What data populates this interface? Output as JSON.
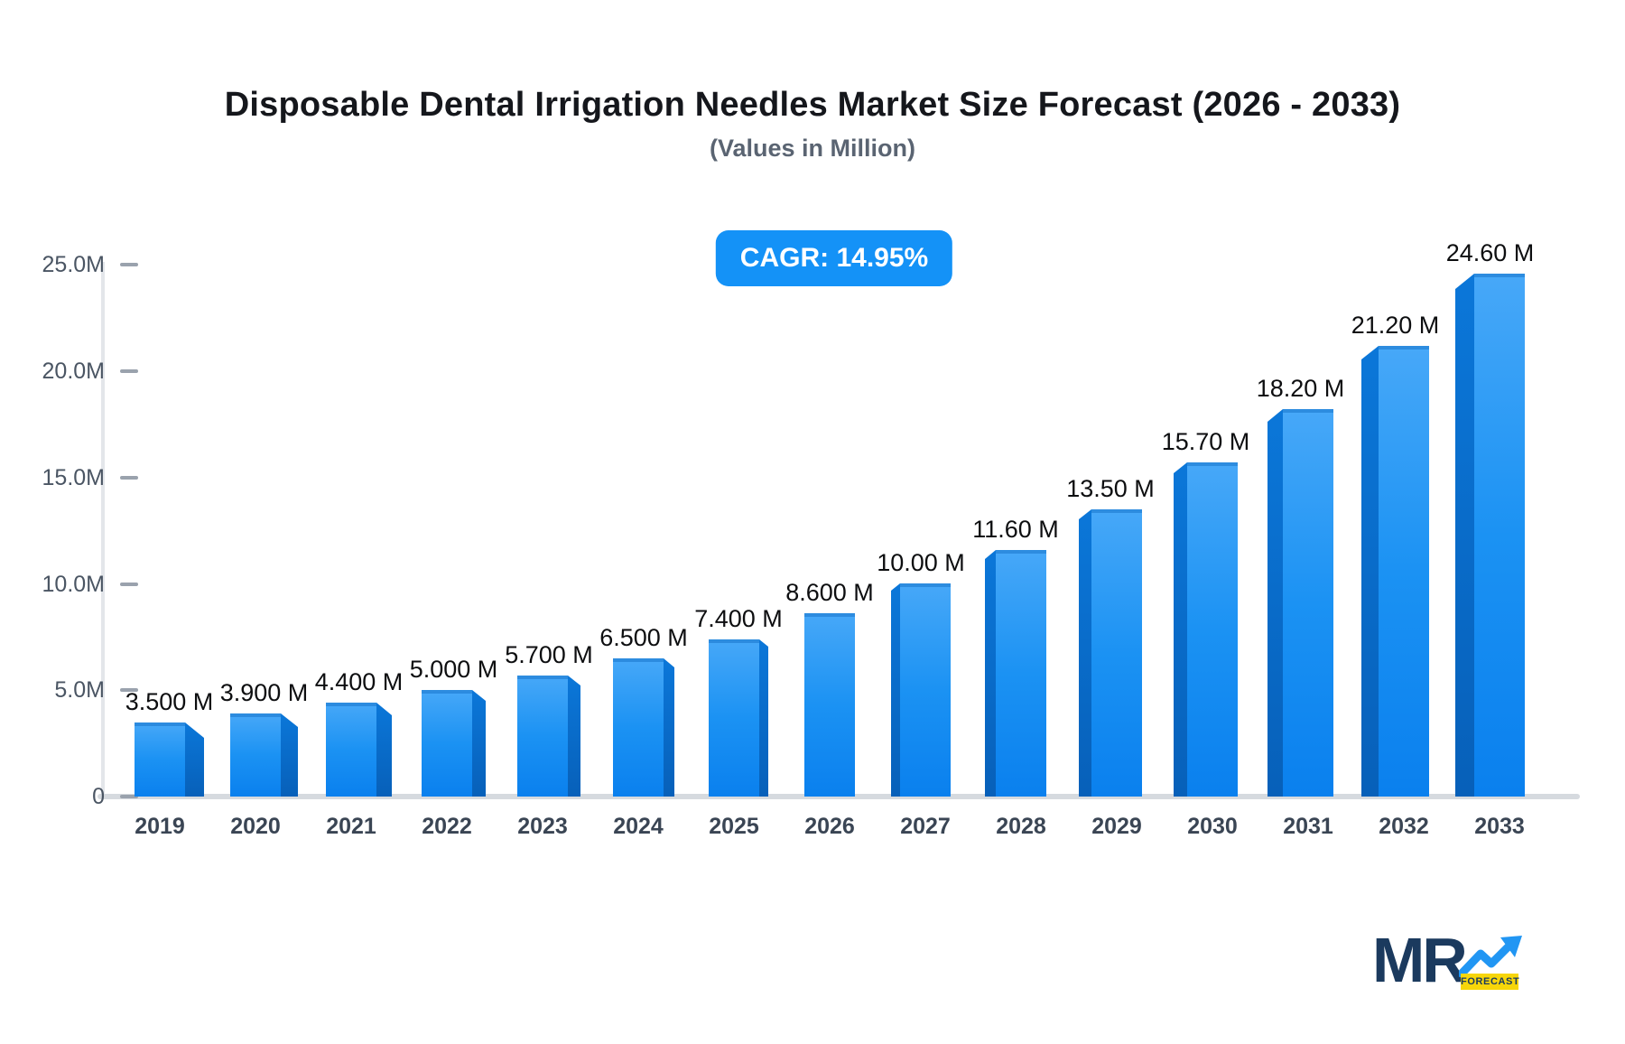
{
  "header": {
    "title": "Disposable Dental Irrigation Needles Market Size Forecast (2026 - 2033)",
    "subtitle": "(Values in Million)"
  },
  "badge": {
    "label": "CAGR: 14.95%",
    "background": "#1492f7",
    "text_color": "#ffffff"
  },
  "chart_data": {
    "type": "bar",
    "title": "Disposable Dental Irrigation Needles Market Size Forecast (2026 - 2033)",
    "subtitle": "(Values in Million)",
    "unit": "Million",
    "cagr": "14.95%",
    "categories": [
      "2019",
      "2020",
      "2021",
      "2022",
      "2023",
      "2024",
      "2025",
      "2026",
      "2027",
      "2028",
      "2029",
      "2030",
      "2031",
      "2032",
      "2033"
    ],
    "values": [
      3.5,
      3.9,
      4.4,
      5.0,
      5.7,
      6.5,
      7.4,
      8.6,
      10.0,
      11.6,
      13.5,
      15.7,
      18.2,
      21.2,
      24.6
    ],
    "value_labels": [
      "3.500 M",
      "3.900 M",
      "4.400 M",
      "5.000 M",
      "5.700 M",
      "6.500 M",
      "7.400 M",
      "8.600 M",
      "10.00 M",
      "11.60 M",
      "13.50 M",
      "15.70 M",
      "18.20 M",
      "21.20 M",
      "24.60 M"
    ],
    "ylim": [
      0,
      25
    ],
    "yticks": [
      {
        "v": 0,
        "label": "0"
      },
      {
        "v": 5,
        "label": "5.0M"
      },
      {
        "v": 10,
        "label": "10.0M"
      },
      {
        "v": 15,
        "label": "15.0M"
      },
      {
        "v": 20,
        "label": "20.0M"
      },
      {
        "v": 25,
        "label": "25.0M"
      }
    ],
    "grid": false,
    "legend": "none",
    "colors": {
      "bar_front_top": "#47a8f8",
      "bar_front_bottom": "#0a80ee",
      "bar_side": "#0768c6",
      "axis": "#d6dadf",
      "tick_text": "#4a5563",
      "year_text": "#3a4554",
      "value_text": "#0d0e10"
    }
  },
  "logo": {
    "text": "MR",
    "sub": "FORECAST",
    "colors": {
      "text": "#1b3a5e",
      "arrow": "#2196f3",
      "sub_bg": "#f7d60a",
      "sub_text": "#1b3a5e"
    }
  }
}
